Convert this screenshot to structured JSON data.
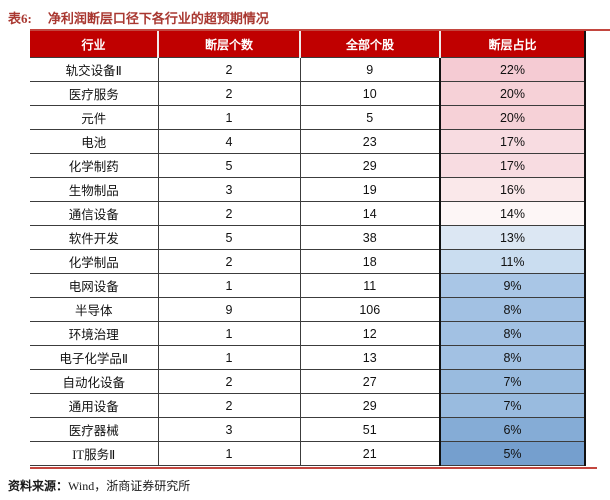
{
  "title": {
    "label": "表6:",
    "caption": "净利润断层口径下各行业的超预期情况"
  },
  "colors": {
    "header_bg": "#c00000",
    "header_text": "#ffffff",
    "title_text": "#a93831",
    "rule": "#c3463f"
  },
  "table": {
    "headers": [
      "行业",
      "断层个数",
      "全部个股",
      "断层占比"
    ],
    "rows": [
      {
        "industry": "轨交设备Ⅱ",
        "count": "2",
        "total": "9",
        "ratio": "22%",
        "ratio_bg": "#f5cbd3"
      },
      {
        "industry": "医疗服务",
        "count": "2",
        "total": "10",
        "ratio": "20%",
        "ratio_bg": "#f6d1d7"
      },
      {
        "industry": "元件",
        "count": "1",
        "total": "5",
        "ratio": "20%",
        "ratio_bg": "#f6d1d7"
      },
      {
        "industry": "电池",
        "count": "4",
        "total": "23",
        "ratio": "17%",
        "ratio_bg": "#f8dce1"
      },
      {
        "industry": "化学制药",
        "count": "5",
        "total": "29",
        "ratio": "17%",
        "ratio_bg": "#f8dce1"
      },
      {
        "industry": "生物制品",
        "count": "3",
        "total": "19",
        "ratio": "16%",
        "ratio_bg": "#fae8ea"
      },
      {
        "industry": "通信设备",
        "count": "2",
        "total": "14",
        "ratio": "14%",
        "ratio_bg": "#fdf6f6"
      },
      {
        "industry": "软件开发",
        "count": "5",
        "total": "38",
        "ratio": "13%",
        "ratio_bg": "#dce7f3"
      },
      {
        "industry": "化学制品",
        "count": "2",
        "total": "18",
        "ratio": "11%",
        "ratio_bg": "#caddf0"
      },
      {
        "industry": "电网设备",
        "count": "1",
        "total": "11",
        "ratio": "9%",
        "ratio_bg": "#a9c6e6"
      },
      {
        "industry": "半导体",
        "count": "9",
        "total": "106",
        "ratio": "8%",
        "ratio_bg": "#a2c1e3"
      },
      {
        "industry": "环境治理",
        "count": "1",
        "total": "12",
        "ratio": "8%",
        "ratio_bg": "#a2c1e3"
      },
      {
        "industry": "电子化学品Ⅱ",
        "count": "1",
        "total": "13",
        "ratio": "8%",
        "ratio_bg": "#a2c1e3"
      },
      {
        "industry": "自动化设备",
        "count": "2",
        "total": "27",
        "ratio": "7%",
        "ratio_bg": "#99bbdf"
      },
      {
        "industry": "通用设备",
        "count": "2",
        "total": "29",
        "ratio": "7%",
        "ratio_bg": "#99bbdf"
      },
      {
        "industry": "医疗器械",
        "count": "3",
        "total": "51",
        "ratio": "6%",
        "ratio_bg": "#85acd6"
      },
      {
        "industry": "IT服务Ⅱ",
        "count": "1",
        "total": "21",
        "ratio": "5%",
        "ratio_bg": "#759fce"
      }
    ]
  },
  "chart_data": {
    "type": "table",
    "title": "表6: 净利润断层口径下各行业的超预期情况",
    "columns": [
      "行业",
      "断层个数",
      "全部个股",
      "断层占比"
    ],
    "rows": [
      [
        "轨交设备Ⅱ",
        2,
        9,
        "22%"
      ],
      [
        "医疗服务",
        2,
        10,
        "20%"
      ],
      [
        "元件",
        1,
        5,
        "20%"
      ],
      [
        "电池",
        4,
        23,
        "17%"
      ],
      [
        "化学制药",
        5,
        29,
        "17%"
      ],
      [
        "生物制品",
        3,
        19,
        "16%"
      ],
      [
        "通信设备",
        2,
        14,
        "14%"
      ],
      [
        "软件开发",
        5,
        38,
        "13%"
      ],
      [
        "化学制品",
        2,
        18,
        "11%"
      ],
      [
        "电网设备",
        1,
        11,
        "9%"
      ],
      [
        "半导体",
        9,
        106,
        "8%"
      ],
      [
        "环境治理",
        1,
        12,
        "8%"
      ],
      [
        "电子化学品Ⅱ",
        1,
        13,
        "8%"
      ],
      [
        "自动化设备",
        2,
        27,
        "7%"
      ],
      [
        "通用设备",
        2,
        29,
        "7%"
      ],
      [
        "医疗器械",
        3,
        51,
        "6%"
      ],
      [
        "IT服务Ⅱ",
        1,
        21,
        "5%"
      ]
    ],
    "color_scale_note": "断层占比 column uses red-to-blue conditional shading: high % pink, low % blue"
  },
  "footer": {
    "source_label": "资料来源：",
    "source_text": "Wind，浙商证券研究所"
  }
}
